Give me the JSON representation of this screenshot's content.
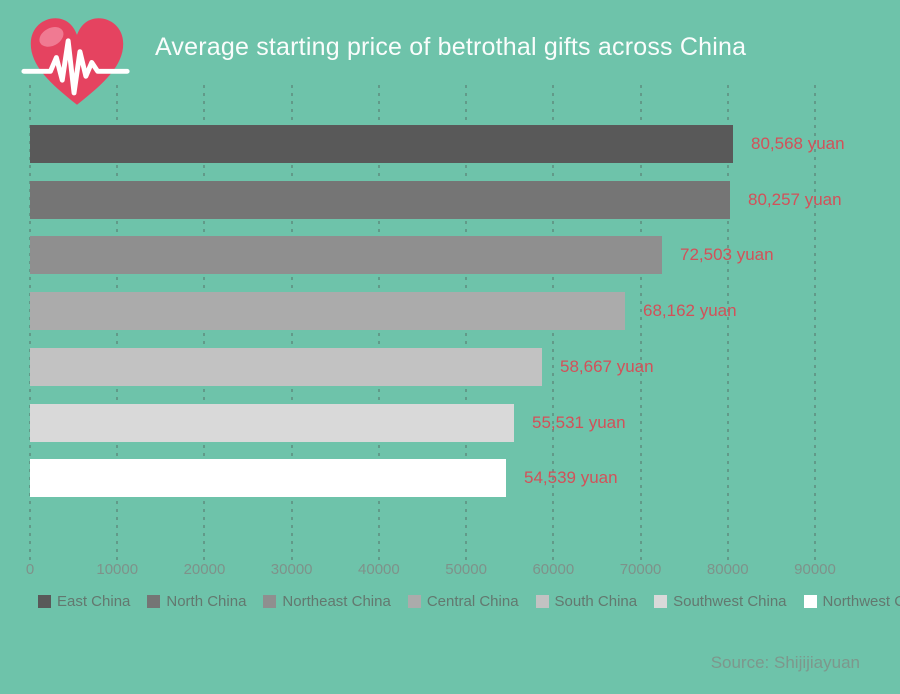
{
  "header": {
    "title": "Average starting price of betrothal gifts across China",
    "logo_icon": "heart-ekg-icon"
  },
  "colors": {
    "background": "#6ec3aa",
    "title_text": "#fafdfc",
    "value_text": "#d25159",
    "axis_text": "#7e928a",
    "legend_text": "#63786f",
    "source_text": "#7d978c",
    "heart_red": "#e54360",
    "heart_highlight": "#f07a92",
    "ekg_line": "#ffffff",
    "bar_colors": [
      "#595959",
      "#757575",
      "#8f8f8f",
      "#ababab",
      "#c2c2c2",
      "#d9d9d9",
      "#ffffff"
    ]
  },
  "chart_data": {
    "type": "bar",
    "orientation": "horizontal",
    "title": "Average starting price of betrothal gifts across China",
    "categories": [
      "East China",
      "North China",
      "Northeast China",
      "Central China",
      "South China",
      "Southwest China",
      "Northwest China"
    ],
    "values": [
      80568,
      80257,
      72503,
      68162,
      58667,
      55531,
      54539
    ],
    "value_labels": [
      "80,568 yuan",
      "80,257 yuan",
      "72,503 yuan",
      "68,162 yuan",
      "58,667 yuan",
      "55,531 yuan",
      "54,539 yuan"
    ],
    "x_ticks": [
      0,
      10000,
      20000,
      30000,
      40000,
      50000,
      60000,
      70000,
      80000,
      90000
    ],
    "x_tick_labels": [
      "0",
      "10000",
      "20000",
      "30000",
      "40000",
      "50000",
      "60000",
      "70000",
      "80000",
      "90000"
    ],
    "xlim": [
      0,
      90000
    ],
    "xlabel": "",
    "ylabel": "",
    "grid": "vertical-dashed",
    "legend_position": "bottom"
  },
  "footer": {
    "source": "Source: Shijijiayuan"
  }
}
